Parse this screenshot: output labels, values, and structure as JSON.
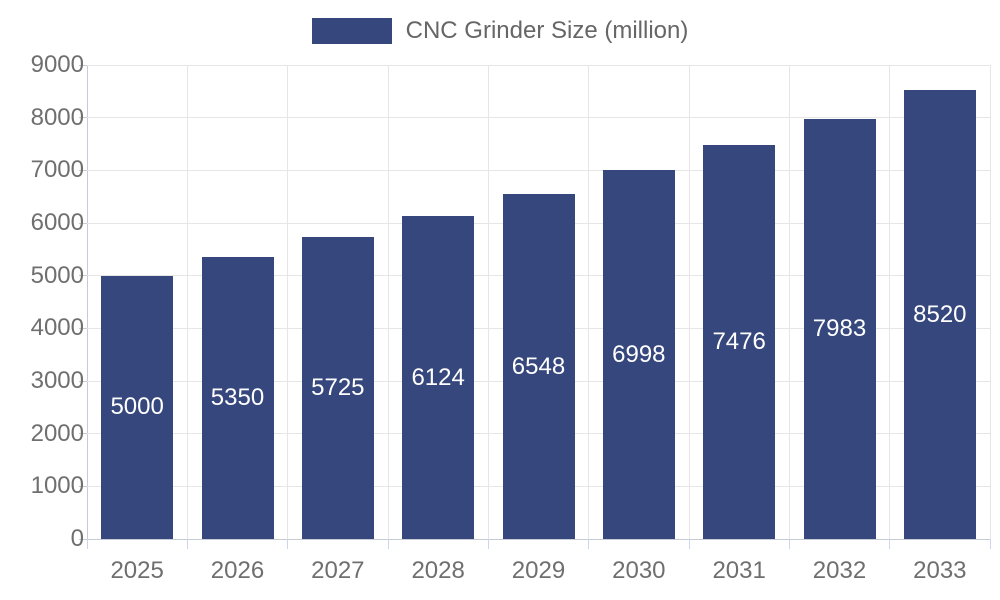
{
  "legend": {
    "label": "CNC Grinder Size (million)"
  },
  "chart_data": {
    "type": "bar",
    "title": "CNC Grinder Size (million)",
    "categories": [
      "2025",
      "2026",
      "2027",
      "2028",
      "2029",
      "2030",
      "2031",
      "2032",
      "2033"
    ],
    "series": [
      {
        "name": "CNC Grinder Size (million)",
        "values": [
          5000,
          5350,
          5725,
          6124,
          6548,
          6998,
          7476,
          7983,
          8520
        ]
      }
    ],
    "xlabel": "",
    "ylabel": "",
    "ylim": [
      0,
      9000
    ],
    "ytick_step": 1000,
    "grid": true,
    "legend_position": "top",
    "value_labels": "inside-center",
    "colors": {
      "bar": "#36477D",
      "value_label": "#FFFFFF",
      "axis_text": "#6F6F6F",
      "gridline": "#E6E6E6",
      "axis_line": "#C6CBD6",
      "tick": "#CCD6EB"
    }
  }
}
